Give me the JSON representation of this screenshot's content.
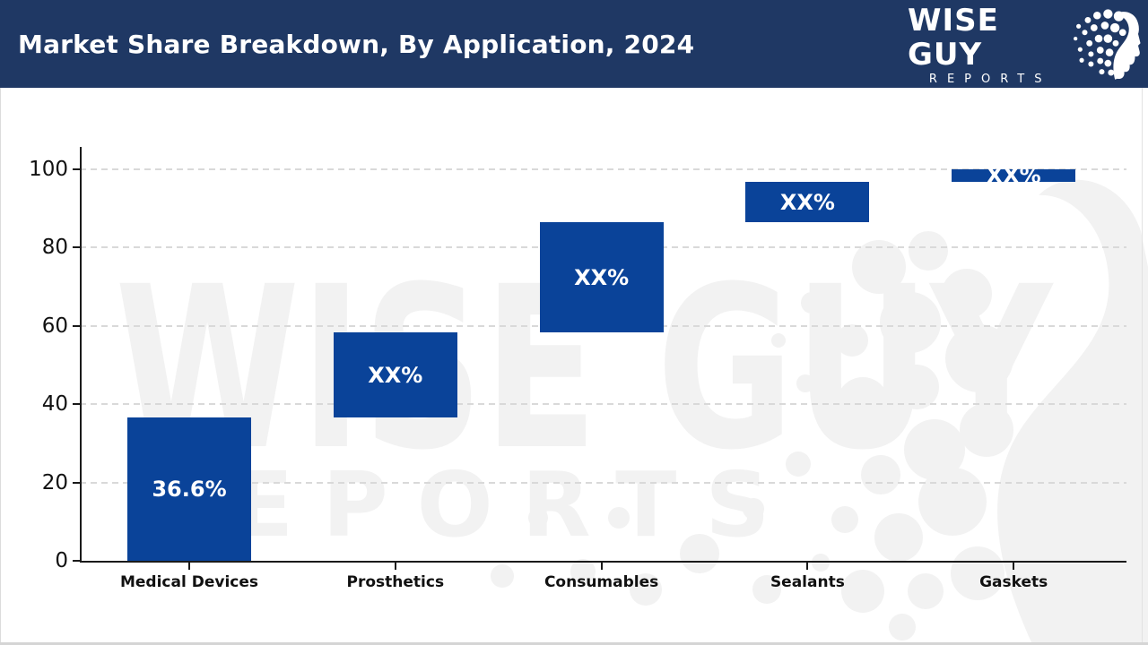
{
  "header": {
    "title": "Market Share Breakdown, By Application, 2024",
    "logo": {
      "line1": "WISE GUY",
      "line2": "REPORTS",
      "face_icon": "dotted-head-profile"
    }
  },
  "watermark": {
    "line1": "WISE GUY",
    "line2": "REPORTS",
    "face_icon": "dotted-head-profile"
  },
  "colors": {
    "header_bg": "#1F3864",
    "bar": "#0A4399",
    "grid": "#D9D9D9",
    "axis": "#1A1A1A",
    "watermark": "#F2F2F2",
    "bar_label_text": "#FFFFFF"
  },
  "chart_data": {
    "type": "bar",
    "subtype": "waterfall",
    "title": "Market Share Breakdown, By Application, 2024",
    "categories": [
      "Medical Devices",
      "Prosthetics",
      "Consumables",
      "Sealants",
      "Gaskets"
    ],
    "segments": [
      {
        "category": "Medical Devices",
        "start": 0,
        "end": 36.6,
        "label": "36.6%"
      },
      {
        "category": "Prosthetics",
        "start": 36.6,
        "end": 58.2,
        "label": "XX%"
      },
      {
        "category": "Consumables",
        "start": 58.2,
        "end": 86.3,
        "label": "XX%"
      },
      {
        "category": "Sealants",
        "start": 86.3,
        "end": 96.6,
        "label": "XX%"
      },
      {
        "category": "Gaskets",
        "start": 96.6,
        "end": 100,
        "label": "XX%"
      }
    ],
    "xlabel": "",
    "ylabel": "",
    "ylim": [
      0,
      104
    ],
    "yticks": [
      0,
      20,
      40,
      60,
      80,
      100
    ],
    "grid": "horizontal-dashed",
    "legend": "none"
  }
}
